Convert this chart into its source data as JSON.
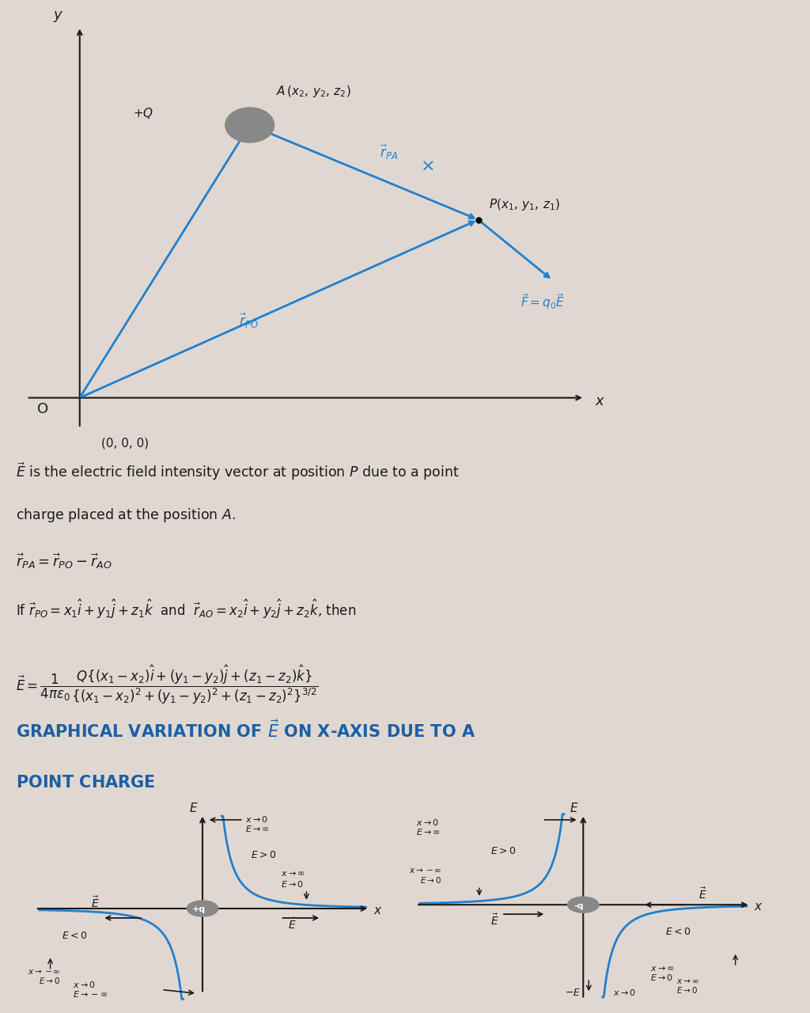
{
  "page_bg": "#e0d8d0",
  "text_color": "#1a1a1a",
  "blue_color": "#2080d0",
  "title_color": "#1a5fa8",
  "A": [
    0.32,
    0.72
  ],
  "P": [
    0.75,
    0.47
  ],
  "charge_gray": "#888888"
}
